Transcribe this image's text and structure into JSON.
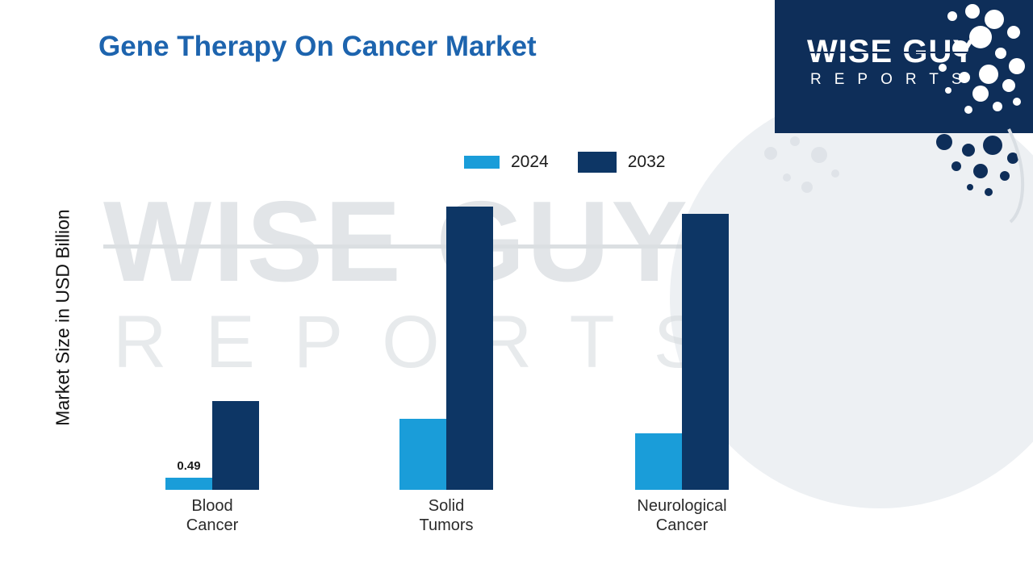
{
  "logo": {
    "line1": "WISE GUY",
    "line2": "REPORTS"
  },
  "watermark": {
    "line1": "WISE GUY",
    "line2": "REPORTS"
  },
  "colors": {
    "title_blue": "#1d64ae",
    "panel_navy": "#0e2e59",
    "series_2024_blue": "#1a9dd9",
    "series_2032_navy": "#0d3665"
  },
  "chart_data": {
    "type": "bar",
    "title": "Gene Therapy On Cancer Market",
    "xlabel": "",
    "ylabel": "Market Size in USD Billion",
    "categories": [
      "Blood Cancer",
      "Solid Tumors",
      "Neurological Cancer"
    ],
    "category_label_lines": [
      [
        "Blood",
        "Cancer"
      ],
      [
        "Solid",
        "Tumors"
      ],
      [
        "Neurological",
        "Cancer"
      ]
    ],
    "series": [
      {
        "name": "2024",
        "color": "#1a9dd9",
        "values": [
          0.49,
          2.9,
          2.3
        ]
      },
      {
        "name": "2032",
        "color": "#0d3665",
        "values": [
          3.6,
          11.5,
          11.2
        ]
      }
    ],
    "bar_labels": [
      [
        "0.49",
        "",
        ""
      ],
      [
        "",
        "",
        ""
      ]
    ],
    "ylim": [
      0,
      12
    ],
    "grid": false,
    "legend_position": "top"
  }
}
